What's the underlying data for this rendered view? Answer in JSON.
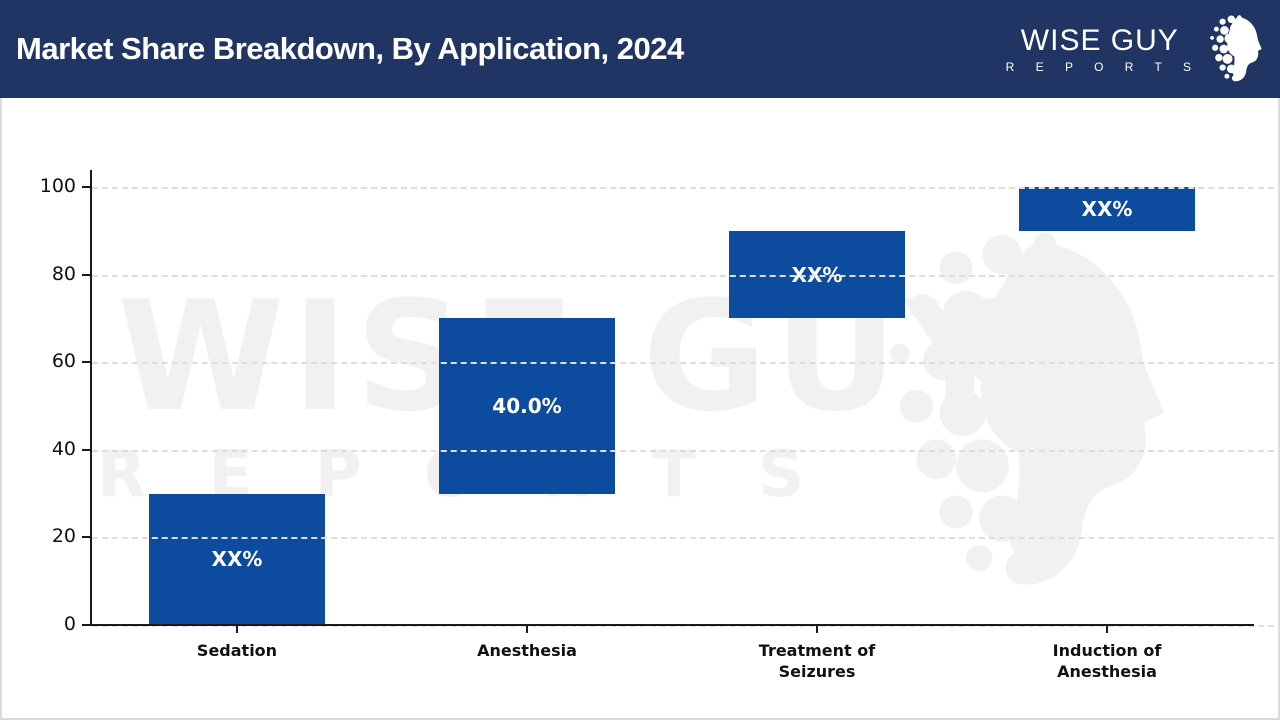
{
  "header": {
    "title": "Market Share Breakdown, By Application, 2024",
    "bg_color": "#213564",
    "logo": {
      "line1": "WISE GUY",
      "line2": "R E P O R T S",
      "head_icon": "dotted-head-profile"
    }
  },
  "watermark": {
    "line1": "WISE GUY",
    "line2": "R E P O R T S",
    "head_icon": "dotted-head-profile"
  },
  "chart_data": {
    "type": "bar",
    "subtype": "floating-waterfall",
    "title": "Market Share Breakdown, By Application, 2024",
    "categories": [
      "Sedation",
      "Anesthesia",
      "Treatment of\nSeizures",
      "Induction of\nAnesthesia"
    ],
    "values": [
      30,
      40,
      20,
      10
    ],
    "bars": [
      {
        "category": "Sedation",
        "start": 0,
        "end": 30,
        "label": "XX%"
      },
      {
        "category": "Anesthesia",
        "start": 30,
        "end": 70,
        "label": "40.0%"
      },
      {
        "category": "Treatment of\nSeizures",
        "start": 70,
        "end": 90,
        "label": "XX%"
      },
      {
        "category": "Induction of\nAnesthesia",
        "start": 90,
        "end": 100,
        "label": "XX%"
      }
    ],
    "yticks": [
      0,
      20,
      40,
      60,
      80,
      100
    ],
    "ylim": [
      0,
      100
    ],
    "xlabel": "",
    "ylabel": "",
    "bar_color": "#0c4b9d",
    "bar_label_color": "#ffffff",
    "grid": true,
    "grid_style": "dashed",
    "grid_color": "#dedede",
    "legend": false
  }
}
